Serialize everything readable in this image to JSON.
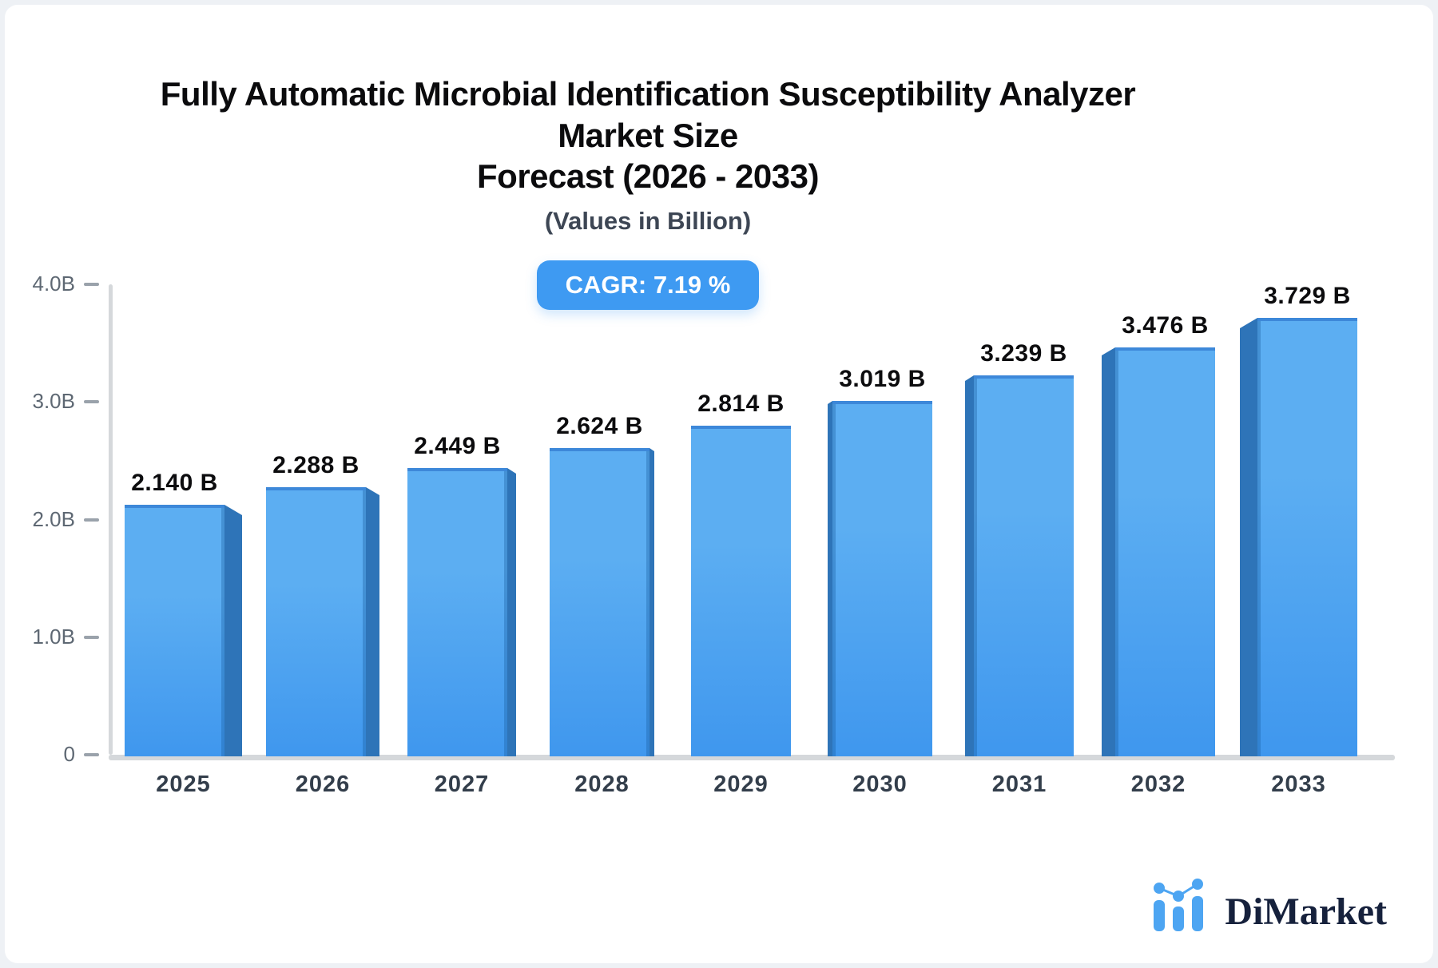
{
  "header": {
    "title_line1": "Fully Automatic Microbial Identification Susceptibility Analyzer Market Size",
    "title_line2": "Forecast (2026 - 2033)",
    "subtitle": "(Values in Billion)",
    "cagr_badge": "CAGR: 7.19 %"
  },
  "chart_data": {
    "type": "bar",
    "title": "Fully Automatic Microbial Identification Susceptibility Analyzer Market Size Forecast (2026 - 2033)",
    "subtitle": "(Values in Billion)",
    "cagr_percent": 7.19,
    "unit": "Billion",
    "categories": [
      "2025",
      "2026",
      "2027",
      "2028",
      "2029",
      "2030",
      "2031",
      "2032",
      "2033"
    ],
    "values": [
      2.14,
      2.288,
      2.449,
      2.624,
      2.814,
      3.019,
      3.239,
      3.476,
      3.729
    ],
    "value_labels": [
      "2.140 B",
      "2.288 B",
      "2.449 B",
      "2.624 B",
      "2.814 B",
      "3.019 B",
      "3.239 B",
      "3.476 B",
      "3.729 B"
    ],
    "xlabel": "",
    "ylabel": "",
    "ylim": [
      0,
      4.0
    ],
    "y_ticks": [
      {
        "label": "4.0B",
        "value": 4.0
      },
      {
        "label": "3.0B",
        "value": 3.0
      },
      {
        "label": "2.0B",
        "value": 2.0
      },
      {
        "label": "1.0B",
        "value": 1.0
      },
      {
        "label": "0",
        "value": 0
      }
    ],
    "grid": false,
    "legend": "none",
    "bar_style": "3d-perspective"
  },
  "colors": {
    "bar_face_top": "#5caef2",
    "bar_face_bottom": "#3f97ee",
    "bar_side": "#2e74b8",
    "bar_top_edge": "#3d88d9",
    "axis": "#d5d8db",
    "tick_dash": "#9aa2ab",
    "tick_text": "#5e6873",
    "year_text": "#333e4b",
    "value_text": "#0c0c0e",
    "badge_bg": "#3e9af2",
    "badge_text": "#ffffff",
    "logo_text": "#16213c",
    "logo_icon": "#4da5f2"
  },
  "logo": {
    "text": "DiMarket"
  }
}
